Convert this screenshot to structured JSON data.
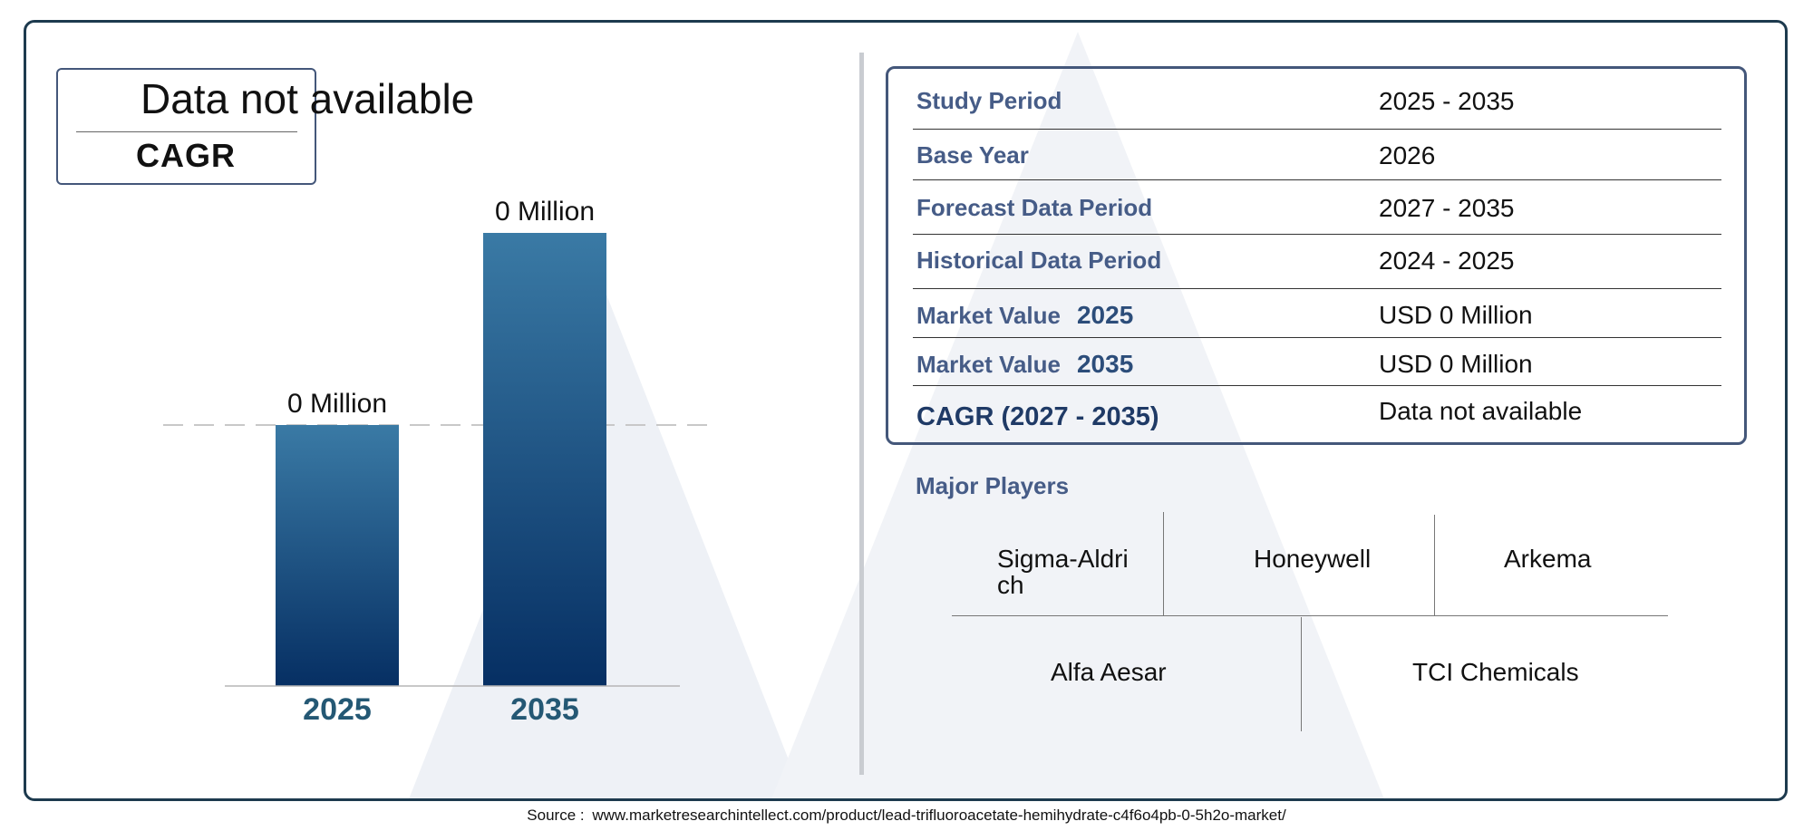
{
  "cagr_card": {
    "value": "Data not available",
    "label": "CAGR"
  },
  "chart_data": {
    "type": "bar",
    "categories": [
      "2025",
      "2035"
    ],
    "values": [
      0,
      0
    ],
    "data_labels": [
      "0 Million",
      "0 Million"
    ],
    "title": "",
    "xlabel": "",
    "ylabel": "",
    "grid": false,
    "legend": "none",
    "colors": {
      "bar_top": "#3a7aa5",
      "bar_bottom": "#062f63",
      "category_text": "#245874"
    }
  },
  "info_table": {
    "rows": [
      {
        "label": "Study Period",
        "year": "",
        "value": "2025 - 2035"
      },
      {
        "label": "Base Year",
        "year": "",
        "value": "2026"
      },
      {
        "label": "Forecast Data Period",
        "year": "",
        "value": "2027 - 2035"
      },
      {
        "label": "Historical Data Period",
        "year": "",
        "value": "2024 - 2025"
      },
      {
        "label": "Market Value",
        "year": "2025",
        "value": "USD 0 Million"
      },
      {
        "label": "Market Value",
        "year": "2035",
        "value": "USD 0 Million"
      },
      {
        "label": "CAGR (2027 - 2035)",
        "year": "",
        "value": "Data not available"
      }
    ]
  },
  "major_players": {
    "title": "Major Players",
    "players": [
      "Sigma-Aldri ch",
      "Honeywell",
      "Arkema",
      "Alfa Aesar",
      "TCI Chemicals"
    ]
  },
  "source": {
    "prefix": "Source :",
    "url": "www.marketresearchintellect.com/product/lead-trifluoroacetate-hemihydrate-c4f6o4pb-0-5h2o-market/"
  }
}
